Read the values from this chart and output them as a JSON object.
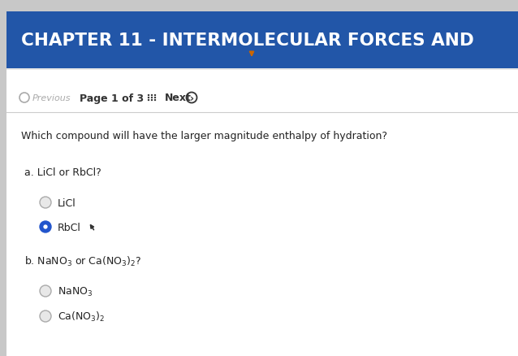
{
  "fig_w": 6.38,
  "fig_h": 4.39,
  "dpi": 100,
  "header_text": "CHAPTER 11 - INTERMOLECULAR FORCES AND",
  "header_bg": "#2256a8",
  "header_text_color": "#ffffff",
  "header_fontsize": 15.5,
  "outer_bg": "#c8c8c8",
  "inner_bg": "#e8e8e8",
  "panel_bg": "#f5f5f5",
  "white_bg": "#ffffff",
  "nav_color_inactive": "#aaaaaa",
  "nav_color_active": "#333333",
  "question_text": "Which compound will have the larger magnitude enthalpy of hydration?",
  "part_a_label": "a. LiCl or RbCl?",
  "part_a_opt1": "LiCl",
  "part_a_opt2": "RbCl",
  "part_b_label": "b. NaNO$_3$ or Ca(NO$_3$)$_2$?",
  "part_b_opt1": "NaNO$_3$",
  "part_b_opt2": "Ca(NO$_3$)$_2$",
  "radio_selected_fill": "#2255cc",
  "radio_unselected_fill": "#e8e8e8",
  "radio_border": "#aaaaaa",
  "text_color": "#222222",
  "separator_color": "#cccccc",
  "cursor_color": "#333333",
  "orange_cursor": "#cc6600"
}
